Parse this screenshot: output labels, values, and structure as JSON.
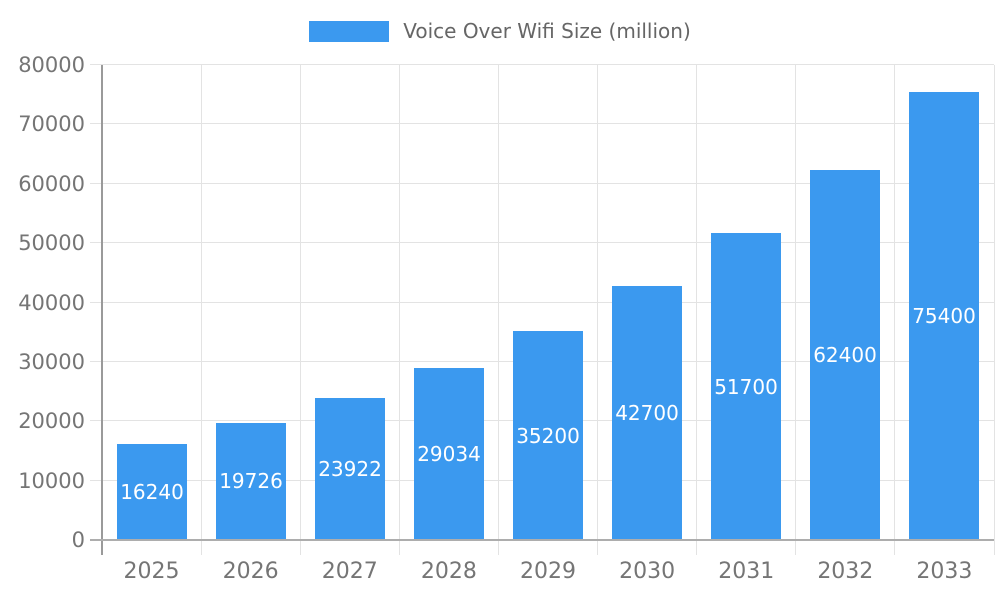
{
  "legend": {
    "label": "Voice Over Wifi Size (million)"
  },
  "chart_data": {
    "type": "bar",
    "title": "Voice Over Wifi Size (million)",
    "categories": [
      "2025",
      "2026",
      "2027",
      "2028",
      "2029",
      "2030",
      "2031",
      "2032",
      "2033"
    ],
    "values": [
      16240,
      19726,
      23922,
      29034,
      35200,
      42700,
      51700,
      62400,
      75400
    ],
    "value_labels": [
      "16240",
      "19726",
      "23922",
      "29034",
      "35200",
      "42700",
      "51700",
      "62400",
      "75400"
    ],
    "xlabel": "",
    "ylabel": "",
    "ylim": [
      0,
      80000
    ],
    "ytick_step": 10000,
    "ytick_labels": [
      "0",
      "10000",
      "20000",
      "30000",
      "40000",
      "50000",
      "60000",
      "70000",
      "80000"
    ],
    "grid": true,
    "legend_position": "top-center"
  },
  "colors": {
    "bar": "#3b99ef",
    "grid": "#e3e3e3",
    "axis": "#9e9e9e",
    "tick_text": "#757575",
    "legend_text": "#666666",
    "value_text": "#ffffff",
    "background": "#ffffff"
  }
}
